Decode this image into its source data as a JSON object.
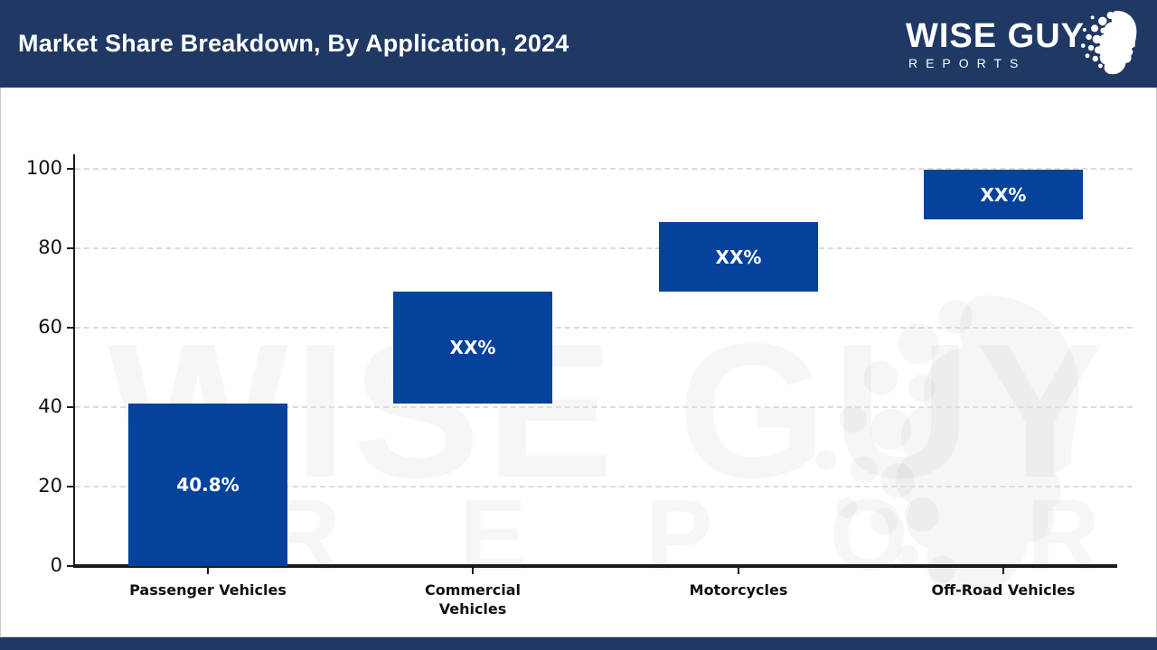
{
  "header": {
    "title": "Market Share Breakdown, By Application, 2024",
    "logo": {
      "line1": "WISE GUY",
      "line2": "REPORTS"
    }
  },
  "watermark": {
    "line1": "WISE GUY",
    "line2": "R E P O R T S"
  },
  "chart_data": {
    "type": "bar",
    "subtype": "waterfall",
    "title": "Market Share Breakdown, By Application, 2024",
    "categories": [
      "Passenger Vehicles",
      "Commercial\nVehicles",
      "Motorcycles",
      "Off-Road Vehicles"
    ],
    "segments": [
      {
        "category": "Passenger Vehicles",
        "start": 0,
        "end": 40.8,
        "label": "40.8%"
      },
      {
        "category": "Commercial Vehicles",
        "start": 40.8,
        "end": 69,
        "label": "XX%"
      },
      {
        "category": "Motorcycles",
        "start": 69,
        "end": 86.6,
        "label": "XX%"
      },
      {
        "category": "Off-Road Vehicles",
        "start": 87.2,
        "end": 99.8,
        "label": "XX%"
      }
    ],
    "xlabel": "",
    "ylabel": "",
    "ylim": [
      0,
      100
    ],
    "yticks": [
      0,
      20,
      40,
      60,
      80,
      100
    ],
    "grid": "horizontal-dashed",
    "legend": "none",
    "bar_color": "#05429b",
    "bar_label_color": "#ffffff",
    "axis_color": "#1a1a1a",
    "grid_color": "#dcdcdc",
    "header_color": "#1f3864"
  }
}
